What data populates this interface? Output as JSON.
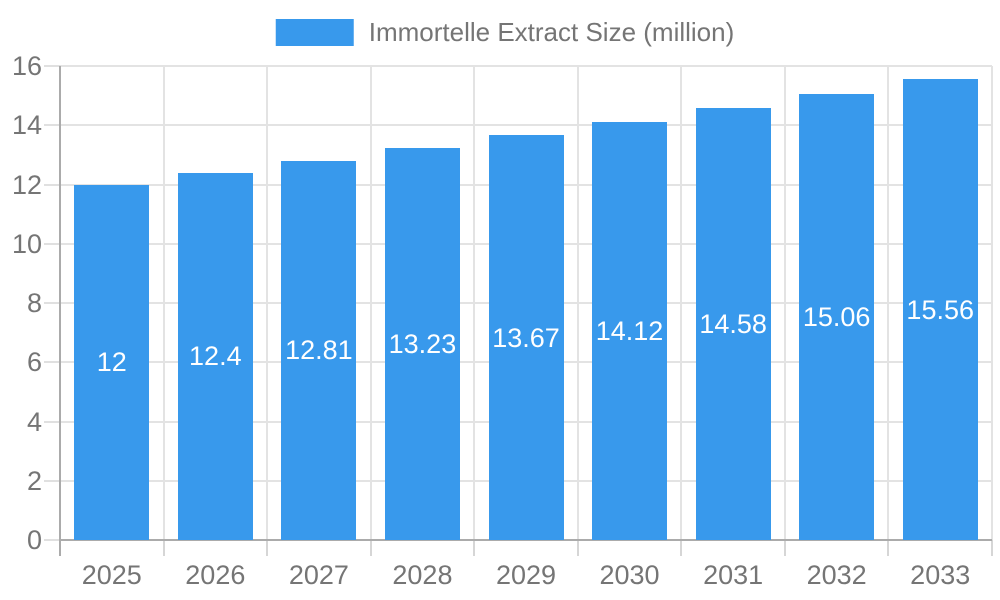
{
  "legend": {
    "label": "Immortelle Extract Size (million)"
  },
  "chart_data": {
    "type": "bar",
    "title": "Immortelle Extract Size (million)",
    "legend_entries": [
      "Immortelle Extract Size (million)"
    ],
    "legend_position": "top",
    "categories": [
      "2025",
      "2026",
      "2027",
      "2028",
      "2029",
      "2030",
      "2031",
      "2032",
      "2033"
    ],
    "values": [
      12,
      12.4,
      12.81,
      13.23,
      13.67,
      14.12,
      14.58,
      15.06,
      15.56
    ],
    "value_labels": [
      "12",
      "12.4",
      "12.81",
      "13.23",
      "13.67",
      "14.12",
      "14.58",
      "15.06",
      "15.56"
    ],
    "xlabel": "",
    "ylabel": "",
    "ylim": [
      0,
      16
    ],
    "yticks": [
      0,
      2,
      4,
      6,
      8,
      10,
      12,
      14,
      16
    ],
    "grid": true,
    "colors": {
      "bar": "#3899EC",
      "bar_label": "#FFFFFF",
      "axis_text": "#757575",
      "gridline": "#E3E3E3",
      "axis_line": "#ABABAB",
      "background": "#FFFFFF"
    }
  }
}
